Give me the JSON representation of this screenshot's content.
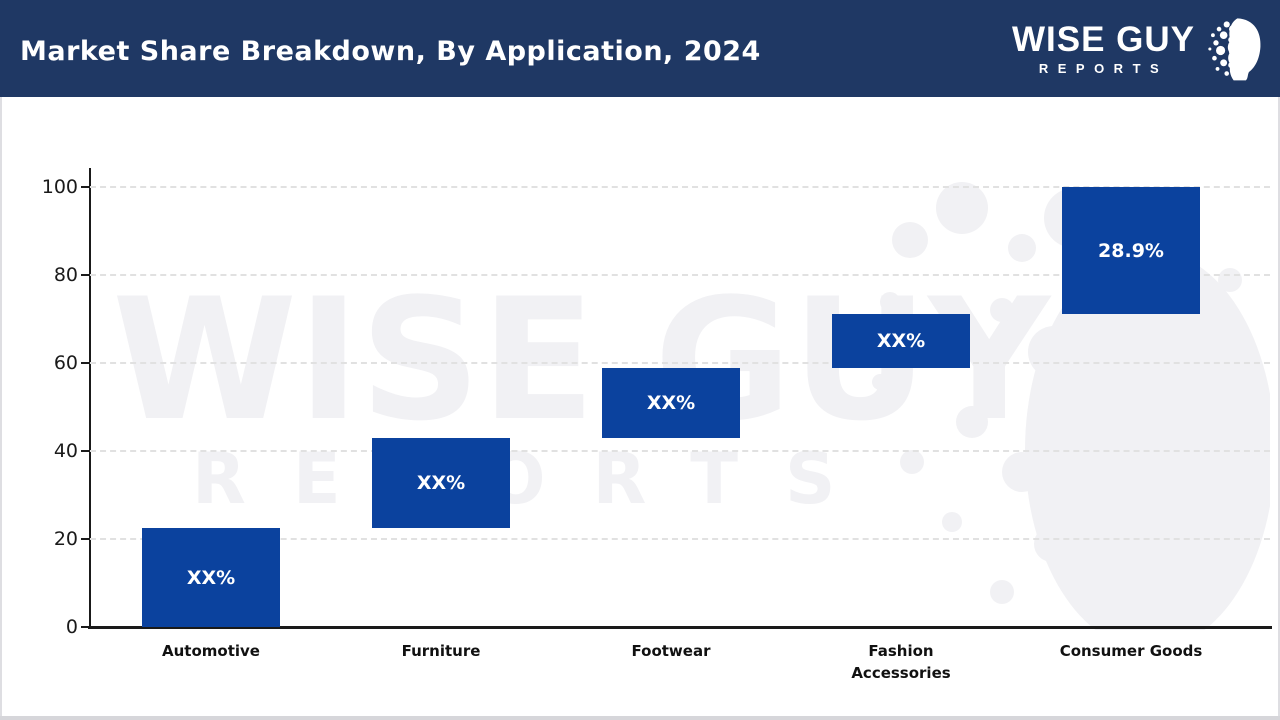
{
  "header": {
    "title": "Market Share Breakdown, By Application, 2024",
    "bg_color": "#1f3864",
    "logo": {
      "line1": "WISE GUY",
      "line2": "REPORTS"
    }
  },
  "watermark": {
    "line1": "WISE GUY",
    "line2": "REPORTS"
  },
  "chart_data": {
    "type": "bar",
    "subtype": "waterfall",
    "title": "Market Share Breakdown, By Application, 2024",
    "categories": [
      "Automotive",
      "Furniture",
      "Footwear",
      "Fashion Accessories",
      "Consumer Goods"
    ],
    "segments": [
      {
        "category": "Automotive",
        "start": 0,
        "end": 22.5,
        "value_pct": 22.5,
        "label": "XX%"
      },
      {
        "category": "Furniture",
        "start": 22.5,
        "end": 43.0,
        "value_pct": 20.5,
        "label": "XX%"
      },
      {
        "category": "Footwear",
        "start": 43.0,
        "end": 58.9,
        "value_pct": 15.9,
        "label": "XX%"
      },
      {
        "category": "Fashion Accessories",
        "start": 58.9,
        "end": 71.1,
        "value_pct": 12.2,
        "label": "XX%"
      },
      {
        "category": "Consumer Goods",
        "start": 71.1,
        "end": 100,
        "value_pct": 28.9,
        "label": "28.9%"
      }
    ],
    "xlabel": "",
    "ylabel": "",
    "ylim": [
      0,
      100
    ],
    "yticks": [
      0,
      20,
      40,
      60,
      80,
      100
    ],
    "grid": "horizontal-dashed",
    "legend": "none",
    "bar_color": "#0b429e",
    "bar_label_color": "#ffffff",
    "gridline_color": "#e1e1e1",
    "axis_color": "#1a1a1a"
  }
}
